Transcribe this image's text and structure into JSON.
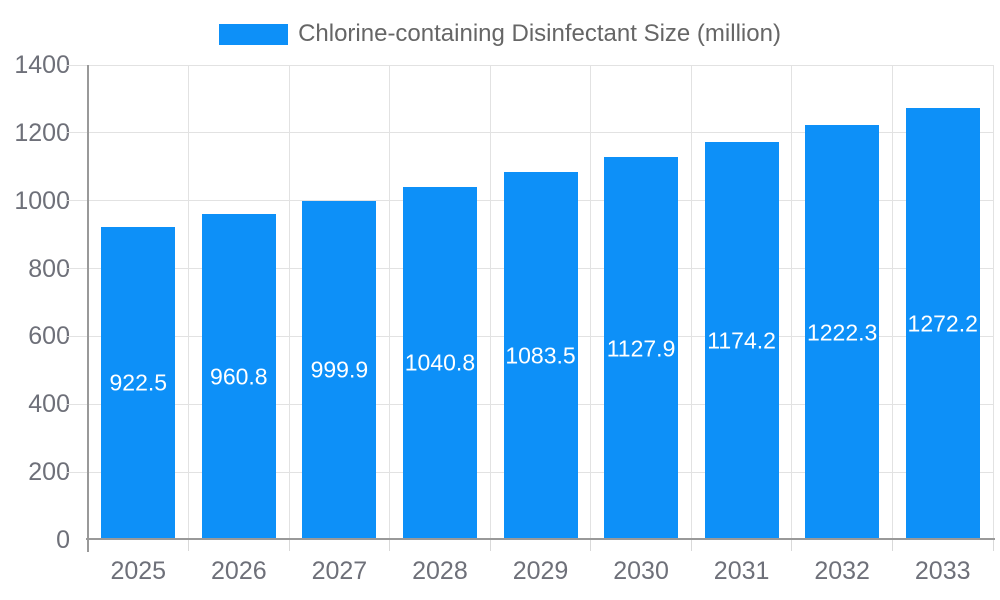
{
  "legend": {
    "label": "Chlorine-containing Disinfectant Size (million)"
  },
  "chart_data": {
    "type": "bar",
    "title": "Chlorine-containing Disinfectant Size (million)",
    "categories": [
      "2025",
      "2026",
      "2027",
      "2028",
      "2029",
      "2030",
      "2031",
      "2032",
      "2033"
    ],
    "values": [
      922.5,
      960.8,
      999.9,
      1040.8,
      1083.5,
      1127.9,
      1174.2,
      1222.3,
      1272.2
    ],
    "bar_labels": [
      "922.5",
      "960.8",
      "999.9",
      "1040.8",
      "1083.5",
      "1127.9",
      "1174.2",
      "1222.3",
      "1272.2"
    ],
    "xlabel": "",
    "ylabel": "",
    "ylim": [
      0,
      1400
    ],
    "yticks": [
      0,
      200,
      400,
      600,
      800,
      1000,
      1200,
      1400
    ],
    "grid": true,
    "legend_position": "top-center",
    "bar_label_position": "inside-middle",
    "colors": {
      "bar": "#0d90f8",
      "bar_label_text": "#ffffff",
      "axis_line": "#999999",
      "gridline": "#e2e2e2",
      "tick": "#d9d9d9",
      "axis_text": "#6e7079",
      "legend_text": "#666666",
      "background": "#ffffff"
    }
  }
}
